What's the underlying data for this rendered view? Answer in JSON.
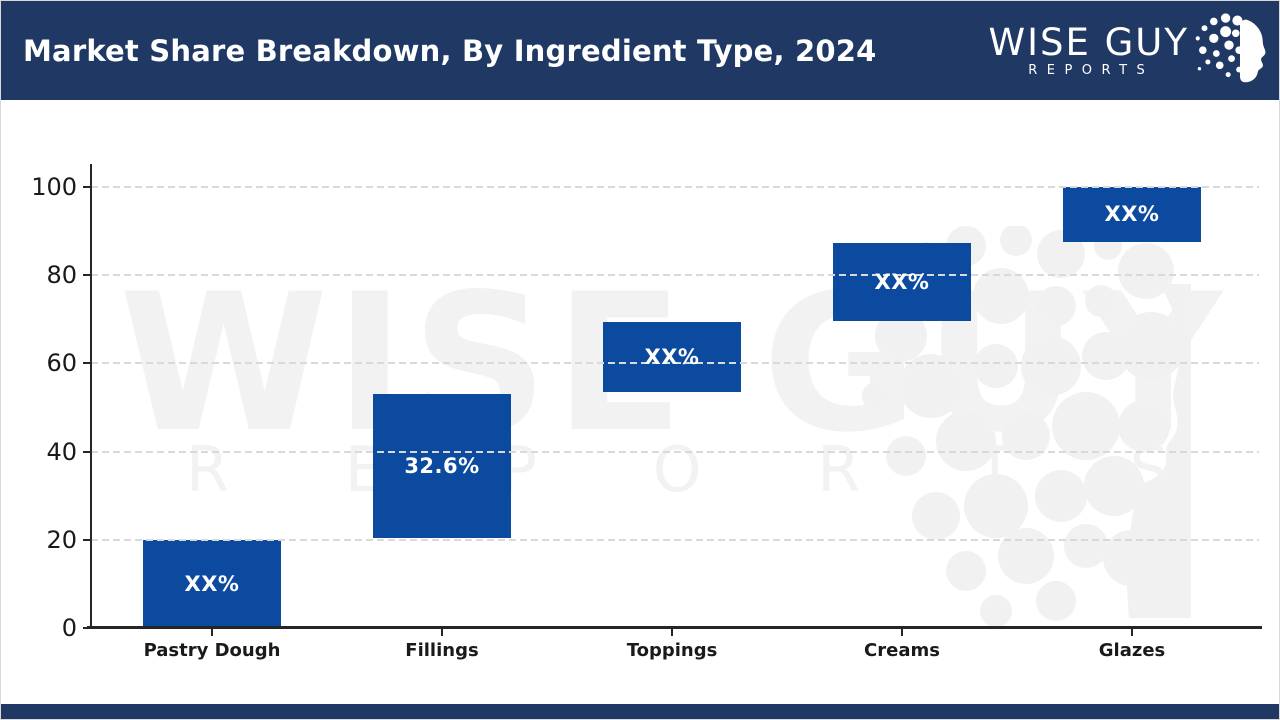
{
  "header": {
    "title": "Market Share Breakdown, By Ingredient Type, 2024",
    "logo": {
      "line1": "WISE GUY",
      "line2": "REPORTS",
      "icon": "dotted-head-profile"
    }
  },
  "watermark": {
    "line1": "WISE GUY",
    "line2": "R E P O R T S",
    "icon": "dotted-head-profile"
  },
  "colors": {
    "header_bg": "#203864",
    "footer_bg": "#203864",
    "bar": "#0b4a9e",
    "grid": "#d9d9d9",
    "axis": "#262626",
    "bar_label_text": "#ffffff",
    "watermark": "#f2f2f2"
  },
  "chart_data": {
    "type": "bar",
    "subtype": "waterfall",
    "title": "Market Share Breakdown, By Ingredient Type, 2024",
    "xlabel": "",
    "ylabel": "",
    "ylim": [
      0,
      100
    ],
    "yticks": [
      0,
      20,
      40,
      60,
      80,
      100
    ],
    "grid": "horizontal-dashed-over-bars",
    "legend": "none",
    "categories": [
      "Pastry Dough",
      "Fillings",
      "Toppings",
      "Creams",
      "Glazes"
    ],
    "segments": [
      {
        "category": "Pastry Dough",
        "start": 0,
        "end": 20,
        "label": "XX%"
      },
      {
        "category": "Fillings",
        "start": 20.4,
        "end": 53,
        "label": "32.6%"
      },
      {
        "category": "Toppings",
        "start": 53.4,
        "end": 69.3,
        "label": "XX%"
      },
      {
        "category": "Creams",
        "start": 69.7,
        "end": 87.3,
        "label": "XX%"
      },
      {
        "category": "Glazes",
        "start": 87.6,
        "end": 100,
        "label": "XX%"
      }
    ],
    "estimated_segment_heights": [
      20,
      32.6,
      15.9,
      17.6,
      12.4
    ],
    "value_labels": [
      "XX%",
      "32.6%",
      "XX%",
      "XX%",
      "XX%"
    ]
  }
}
